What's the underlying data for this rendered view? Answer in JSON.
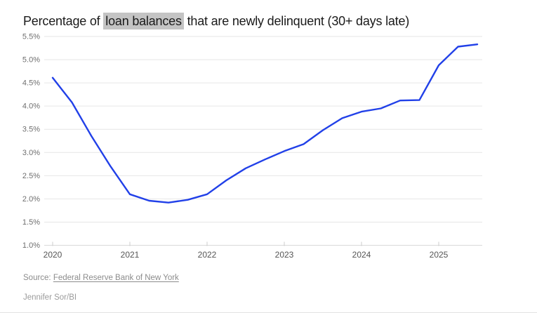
{
  "title": {
    "before_highlight": "Percentage of ",
    "highlight": "loan balances",
    "after_highlight": " that are newly delinquent (30+ days late)"
  },
  "footer": {
    "source_prefix": "Source: ",
    "source_link": "Federal Reserve Bank of New York",
    "credit": "Jennifer Sor/BI"
  },
  "chart_data": {
    "type": "line",
    "title": "Percentage of loan balances that are newly delinquent (30+ days late)",
    "series_name": "Newly delinquent loan balances (30+ days late)",
    "x": [
      2020.0,
      2020.25,
      2020.5,
      2020.75,
      2021.0,
      2021.25,
      2021.5,
      2021.75,
      2022.0,
      2022.25,
      2022.5,
      2022.75,
      2023.0,
      2023.25,
      2023.5,
      2023.75,
      2024.0,
      2024.25,
      2024.5,
      2024.75,
      2025.0,
      2025.25,
      2025.5
    ],
    "values": [
      4.61,
      4.08,
      3.36,
      2.7,
      2.1,
      1.96,
      1.92,
      1.98,
      2.1,
      2.4,
      2.66,
      2.85,
      3.03,
      3.18,
      3.48,
      3.74,
      3.88,
      3.95,
      4.12,
      4.13,
      4.88,
      5.28,
      5.33
    ],
    "x_tick_values": [
      2020,
      2021,
      2022,
      2023,
      2024,
      2025
    ],
    "x_tick_labels": [
      "2020",
      "2021",
      "2022",
      "2023",
      "2024",
      "2025"
    ],
    "y_tick_values": [
      1.0,
      1.5,
      2.0,
      2.5,
      3.0,
      3.5,
      4.0,
      4.5,
      5.0,
      5.5
    ],
    "y_tick_labels": [
      "1.0%",
      "1.5%",
      "2.0%",
      "2.5%",
      "3.0%",
      "3.5%",
      "4.0%",
      "4.5%",
      "5.0%",
      "5.5%"
    ],
    "ylim": [
      1.0,
      5.5
    ],
    "xlim": [
      2020,
      2025.5
    ],
    "grid": true,
    "legend": "none",
    "colors": {
      "line": "#2140e8",
      "gridline": "#e6e6e6",
      "axis": "#d9d9d9",
      "tick": "#cccccc",
      "y_label": "#6e6e6e",
      "x_label": "#555555"
    }
  }
}
